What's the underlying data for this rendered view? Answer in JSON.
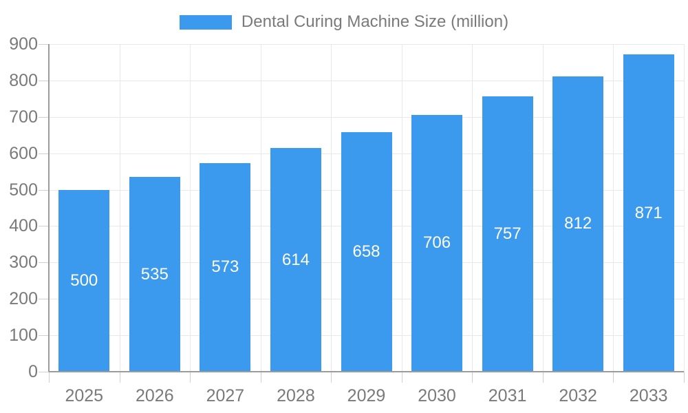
{
  "chart_data": {
    "type": "bar",
    "title": "Dental Curing Machine Size (million)",
    "categories": [
      "2025",
      "2026",
      "2027",
      "2028",
      "2029",
      "2030",
      "2031",
      "2032",
      "2033"
    ],
    "values": [
      500,
      535,
      573,
      614,
      658,
      706,
      757,
      812,
      871
    ],
    "xlabel": "",
    "ylabel": "",
    "ylim": [
      0,
      900
    ],
    "ytick_step": 100,
    "grid": true,
    "legend_position": "top",
    "value_labels_inside_bars": true,
    "colors": {
      "bar": "#3b99ee",
      "bar_label": "#ffffff",
      "axis_line": "#9b9b9b",
      "grid_line": "#e8e8e8",
      "tick_line": "#cfcfcf",
      "tick_label": "#7a7a7a",
      "legend_text": "#7a7a7a",
      "background": "#ffffff"
    }
  }
}
